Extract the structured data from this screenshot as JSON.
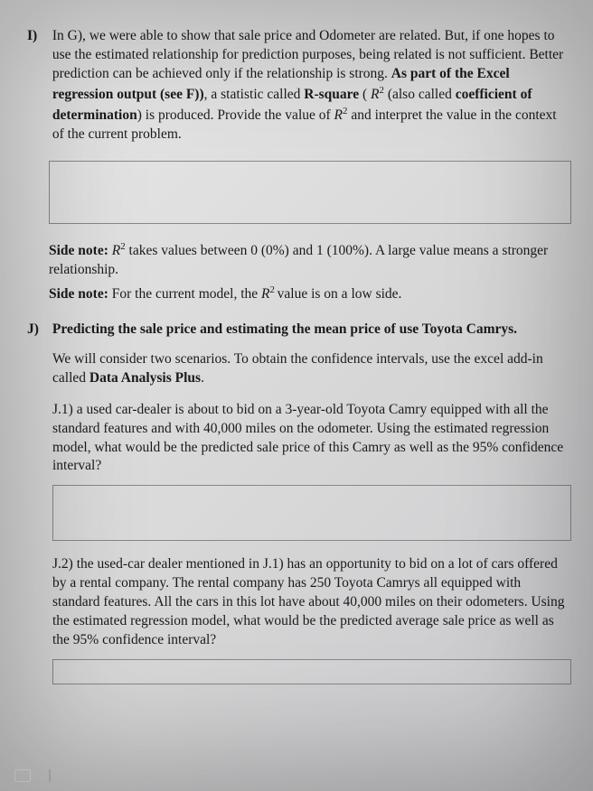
{
  "sectionI": {
    "label": "I)",
    "para": "In G), we were able to show that sale price and Odometer are related. But, if one hopes to use the estimated relationship for prediction purposes, being related is not sufficient. Better prediction can be achieved only if the relationship is strong. ",
    "bold1": "As part of the Excel regression output (see F))",
    "mid1": ", a statistic called ",
    "bold2": "R-square",
    "mid2": " ( ",
    "rsq_open": "R",
    "sup1": "2",
    "mid3": " (also called ",
    "bold3": "coefficient of determination",
    "mid4": ") is produced. Provide the value of ",
    "rsq2": "R",
    "sup2": "2",
    "tail": " and interpret the value in the context of the current problem."
  },
  "sideNotes": {
    "sn1_label": "Side note:",
    "sn1_a": " ",
    "sn1_r": "R",
    "sn1_sup": "2",
    "sn1_b": " takes values between 0 (0%) and 1 (100%).   A large value means a stronger relationship.",
    "sn2_label": "Side note:",
    "sn2_a": " For the current model, the  ",
    "sn2_r": "R",
    "sn2_sup": "2 ",
    "sn2_b": "value is on a low side."
  },
  "sectionJ": {
    "label": "J)",
    "title": "Predicting the sale price and estimating the mean price of use Toyota Camrys.",
    "intro_a": "We will consider two scenarios. To obtain the confidence intervals, use the excel add-in called ",
    "intro_bold": "Data Analysis Plus",
    "intro_b": ".",
    "j1": "J.1) a used car-dealer is about to bid on a 3-year-old Toyota Camry equipped with all the standard features and with 40,000 miles on the odometer. Using the estimated regression model, what would be the predicted sale price of this Camry as well as the 95% confidence interval?",
    "j2": "J.2) the used-car dealer mentioned in J.1) has an opportunity to bid on a lot of cars offered by a rental company. The rental company has 250 Toyota Camrys all equipped with standard features. All the cars in this lot have about 40,000 miles on their odometers. Using the estimated regression model, what would be the predicted average sale price as well as the 95% confidence interval?"
  }
}
